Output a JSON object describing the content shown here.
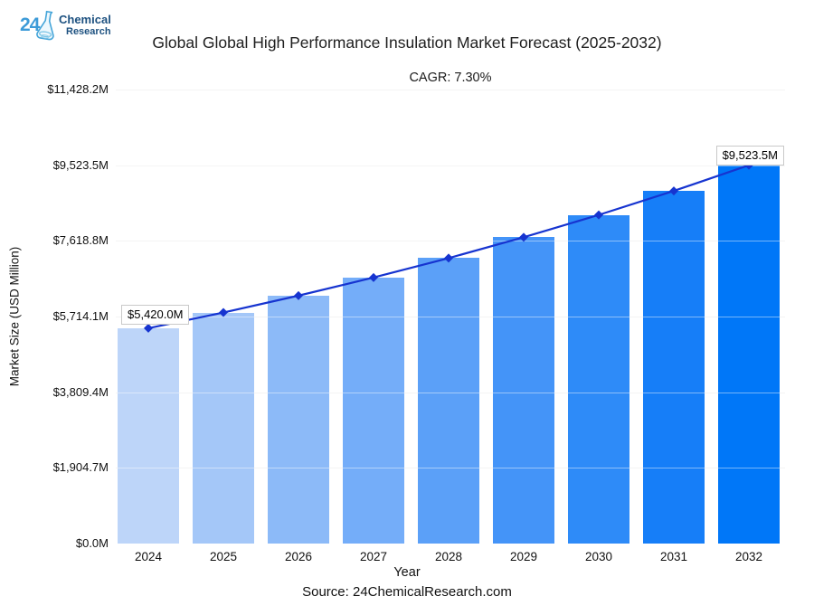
{
  "logo": {
    "number": "24",
    "line1": "Chemical",
    "line2": "Research"
  },
  "title": "Global Global High Performance Insulation Market Forecast (2025-2032)",
  "subtitle": "CAGR: 7.30%",
  "source": "Source: 24ChemicalResearch.com",
  "chart_data": {
    "type": "bar",
    "line_overlay": true,
    "title": "Global Global High Performance Insulation Market Forecast (2025-2032)",
    "subtitle": "CAGR: 7.30%",
    "xlabel": "Year",
    "ylabel": "Market Size (USD Million)",
    "categories": [
      "2024",
      "2025",
      "2026",
      "2027",
      "2028",
      "2029",
      "2030",
      "2031",
      "2032"
    ],
    "values": [
      5420.0,
      5816.0,
      6240.5,
      6696.1,
      7184.9,
      7709.4,
      8272.2,
      8876.1,
      9523.5
    ],
    "ylim": [
      0,
      11428.2
    ],
    "y_ticks": [
      "$0.0M",
      "$1,904.7M",
      "$3,809.4M",
      "$5,714.1M",
      "$7,618.8M",
      "$9,523.5M",
      "$11,428.2M"
    ],
    "data_labels": {
      "first": "$5,420.0M",
      "last": "$9,523.5M"
    },
    "grid": true,
    "legend": false,
    "bar_colors": [
      "#bdd5f9",
      "#a4c7f8",
      "#8cbaf8",
      "#74adf9",
      "#5ba0f8",
      "#4494f8",
      "#2e8bf8",
      "#167ef8",
      "#0077f8"
    ],
    "line_color": "#1634d0"
  }
}
